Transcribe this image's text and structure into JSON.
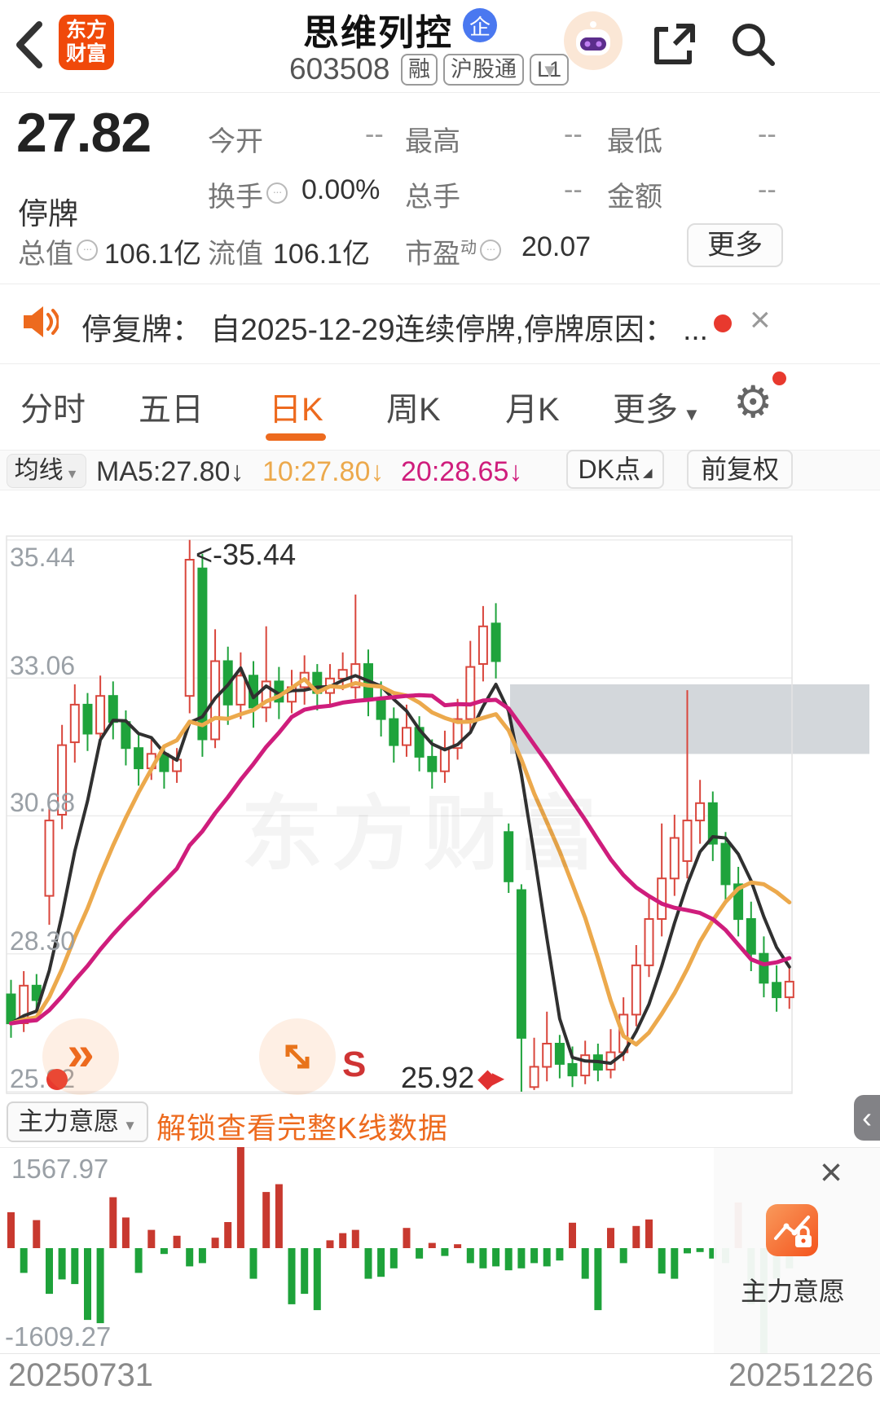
{
  "icons": {
    "info": "···",
    "caret_down": "▼",
    "gear": "⚙",
    "close": "×",
    "chevron_left": "‹",
    "double_right": "»",
    "diamond": "◆",
    "small_right": "▶",
    "corner": "◢"
  },
  "colors": {
    "accent": "#ed6a1e",
    "up": "#d9463c",
    "down": "#1fa33c",
    "ma5": "#303030",
    "ma10": "#eca94c",
    "ma20": "#cf1d7c",
    "band": "#d3d7db"
  },
  "header": {
    "logo_line1": "东方",
    "logo_line2": "财富",
    "title": "思维列控",
    "title_badge": "企",
    "code": "603508",
    "tag1": "融",
    "tag2": "沪股通",
    "tag3": "L1"
  },
  "price": {
    "last": "27.82",
    "status": "停牌"
  },
  "stats": {
    "open_label": "今开",
    "open_value": "--",
    "high_label": "最高",
    "high_value": "--",
    "low_label": "最低",
    "low_value": "--",
    "turnover_label": "换手",
    "turnover_value": "0.00%",
    "vol_label": "总手",
    "vol_value": "--",
    "amount_label": "金额",
    "amount_value": "--",
    "mcap_label": "总值",
    "mcap_value": "106.1亿",
    "fcap_label": "流值",
    "fcap_value": "106.1亿",
    "pe_label": "市盈",
    "pe_sup": "动",
    "pe_value": "20.07",
    "more_label": "更多"
  },
  "notice": {
    "text": "停复牌：  自2025-12-29连续停牌,停牌原因：  ..."
  },
  "tabs": {
    "t0": "分时",
    "t1": "五日",
    "t2": "日K",
    "t3": "周K",
    "t4": "月K",
    "more": "更多"
  },
  "ma_bar": {
    "avg_button": "均线",
    "ma5": "MA5:27.80↓",
    "ma10": "10:27.80↓",
    "ma20": "20:28.65↓",
    "dk_button": "DK点",
    "fq_button": "前复权"
  },
  "chart": {
    "axis": [
      "35.44",
      "33.06",
      "30.68",
      "28.30",
      "25.92"
    ],
    "high_note": "<-35.44",
    "low_note": "25.92",
    "s_marker": "S",
    "watermark": "东方财富"
  },
  "kfooter": {
    "main_button": "主力意愿",
    "unlock_text": "解锁查看完整K线数据"
  },
  "volume": {
    "max_label": "1567.97",
    "min_label": "-1609.27",
    "panel_label": "主力意愿",
    "date_left": "20250731",
    "date_right": "20251226"
  },
  "chart_data": {
    "type": "candlestick",
    "title": "思维列控 603508 日K 前复权",
    "x_range": [
      "20250731",
      "20251226"
    ],
    "y_axis_labels": [
      35.44,
      33.06,
      30.68,
      28.3,
      25.92
    ],
    "high_annotation": 35.44,
    "low_annotation": 25.92,
    "ma_legend": {
      "ma5": 27.8,
      "ma10": 27.8,
      "ma20": 28.65
    },
    "suspension_band": {
      "price_low": 31.75,
      "price_high": 32.95
    },
    "candles": [
      [
        27.6,
        27.1,
        26.85,
        27.85
      ],
      [
        27.1,
        27.75,
        26.95,
        28.0
      ],
      [
        27.75,
        27.5,
        27.3,
        27.95
      ],
      [
        29.3,
        30.6,
        28.8,
        30.85
      ],
      [
        30.7,
        31.9,
        30.45,
        32.25
      ],
      [
        31.95,
        32.6,
        31.6,
        32.95
      ],
      [
        32.6,
        32.1,
        31.8,
        32.8
      ],
      [
        32.1,
        32.75,
        31.9,
        33.1
      ],
      [
        32.75,
        32.3,
        32.0,
        33.0
      ],
      [
        32.3,
        31.85,
        31.55,
        32.5
      ],
      [
        31.85,
        31.5,
        31.2,
        32.1
      ],
      [
        31.5,
        31.75,
        31.3,
        32.0
      ],
      [
        31.75,
        31.45,
        31.15,
        31.9
      ],
      [
        31.45,
        31.65,
        31.25,
        31.85
      ],
      [
        32.75,
        35.1,
        32.45,
        35.44
      ],
      [
        34.95,
        32.0,
        31.7,
        35.2
      ],
      [
        32.0,
        33.35,
        31.85,
        33.9
      ],
      [
        33.35,
        32.6,
        32.25,
        33.6
      ],
      [
        32.6,
        33.1,
        32.35,
        33.5
      ],
      [
        33.1,
        32.55,
        32.2,
        33.35
      ],
      [
        32.55,
        33.0,
        32.3,
        33.95
      ],
      [
        33.0,
        32.65,
        32.35,
        33.25
      ],
      [
        32.65,
        32.9,
        32.45,
        33.2
      ],
      [
        32.9,
        33.15,
        32.6,
        33.45
      ],
      [
        33.15,
        32.8,
        32.5,
        33.3
      ],
      [
        32.8,
        33.05,
        32.6,
        33.3
      ],
      [
        33.05,
        33.2,
        32.85,
        33.5
      ],
      [
        32.9,
        33.3,
        32.7,
        34.5
      ],
      [
        33.3,
        32.7,
        32.4,
        33.55
      ],
      [
        32.7,
        32.35,
        32.05,
        33.0
      ],
      [
        32.35,
        31.9,
        31.6,
        32.55
      ],
      [
        31.9,
        32.2,
        31.7,
        32.6
      ],
      [
        32.2,
        31.7,
        31.45,
        32.4
      ],
      [
        31.7,
        31.45,
        31.15,
        32.0
      ],
      [
        31.45,
        31.85,
        31.25,
        32.15
      ],
      [
        31.85,
        32.35,
        31.65,
        32.7
      ],
      [
        32.35,
        33.25,
        32.15,
        33.7
      ],
      [
        33.3,
        33.95,
        33.0,
        34.3
      ],
      [
        34.0,
        33.35,
        33.05,
        34.35
      ],
      [
        30.4,
        29.55,
        29.35,
        30.55
      ],
      [
        29.4,
        26.85,
        25.92,
        29.5
      ],
      [
        26.0,
        26.35,
        25.95,
        26.85
      ],
      [
        26.35,
        26.75,
        26.1,
        27.3
      ],
      [
        26.75,
        26.4,
        26.15,
        26.9
      ],
      [
        26.4,
        26.2,
        26.0,
        26.7
      ],
      [
        26.2,
        26.55,
        26.05,
        26.8
      ],
      [
        26.55,
        26.3,
        26.1,
        26.75
      ],
      [
        26.3,
        26.6,
        26.15,
        27.0
      ],
      [
        26.6,
        27.25,
        26.45,
        27.55
      ],
      [
        27.25,
        28.1,
        27.05,
        28.45
      ],
      [
        28.1,
        28.9,
        27.9,
        29.3
      ],
      [
        28.9,
        29.6,
        28.6,
        30.55
      ],
      [
        29.6,
        30.3,
        29.3,
        30.7
      ],
      [
        29.9,
        30.6,
        29.6,
        32.85
      ],
      [
        30.6,
        30.9,
        30.2,
        31.3
      ],
      [
        30.9,
        30.2,
        29.9,
        31.1
      ],
      [
        30.2,
        29.5,
        29.2,
        30.4
      ],
      [
        29.5,
        28.9,
        28.6,
        29.8
      ],
      [
        28.9,
        28.3,
        28.0,
        29.2
      ],
      [
        28.3,
        27.8,
        27.55,
        28.6
      ],
      [
        27.8,
        27.55,
        27.3,
        28.1
      ],
      [
        27.55,
        27.82,
        27.35,
        28.05
      ]
    ],
    "sub_chart": {
      "type": "bar",
      "name": "主力意愿",
      "max": 1567.97,
      "min": -1609.27,
      "values": [
        550,
        -380,
        430,
        -700,
        -480,
        -550,
        -1100,
        -1150,
        780,
        470,
        -380,
        280,
        -90,
        190,
        -280,
        -230,
        160,
        400,
        1567.97,
        -470,
        860,
        980,
        -860,
        -700,
        -950,
        120,
        230,
        280,
        -470,
        -440,
        -310,
        310,
        -160,
        80,
        -120,
        60,
        -230,
        -310,
        -280,
        -340,
        -310,
        -230,
        -280,
        -190,
        390,
        -470,
        -950,
        310,
        -230,
        340,
        440,
        -390,
        -470,
        -80,
        -60,
        -160,
        -230,
        700,
        -860,
        -1609.27,
        -470,
        -310
      ]
    }
  }
}
